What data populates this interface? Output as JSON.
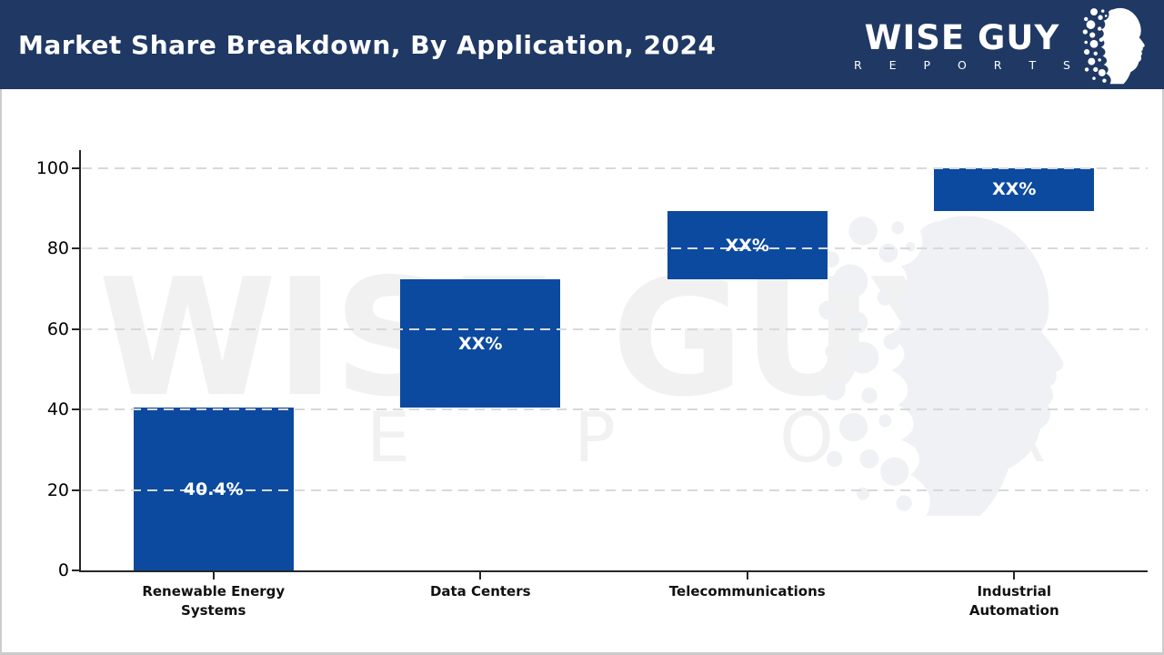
{
  "header": {
    "title": "Market Share Breakdown, By Application, 2024",
    "bg_color": "#1f3864",
    "logo": {
      "line1": "WISE GUY",
      "line2": "R E P O R T S"
    }
  },
  "watermark": {
    "line1": "WISE GUY",
    "line2": "R E P O R T S"
  },
  "chart_data": {
    "type": "bar",
    "subtype": "waterfall",
    "title": "Market Share Breakdown, By Application, 2024",
    "categories": [
      "Renewable Energy Systems",
      "Data Centers",
      "Telecommunications",
      "Industrial Automation"
    ],
    "category_display_lines": [
      [
        "Renewable Energy",
        "Systems"
      ],
      [
        "Data Centers"
      ],
      [
        "Telecommunications"
      ],
      [
        "Industrial",
        "Automation"
      ]
    ],
    "segments": [
      {
        "category": "Renewable Energy Systems",
        "start": 0,
        "end": 40.4,
        "label": "40.4%"
      },
      {
        "category": "Data Centers",
        "start": 40.4,
        "end": 72.3,
        "label": "XX%"
      },
      {
        "category": "Telecommunications",
        "start": 72.3,
        "end": 89.4,
        "label": "XX%"
      },
      {
        "category": "Industrial Automation",
        "start": 89.4,
        "end": 100,
        "label": "XX%"
      }
    ],
    "ylim": [
      0,
      100
    ],
    "yticks": [
      0,
      20,
      40,
      60,
      80,
      100
    ],
    "xlabel": "",
    "ylabel": "",
    "grid": "horizontal-dashed",
    "legend": "none",
    "bar_color": "#0b4a9f",
    "bar_label_color": "#ffffff",
    "axis_color": "#262626",
    "gridline_color": "#d9d9d9"
  }
}
